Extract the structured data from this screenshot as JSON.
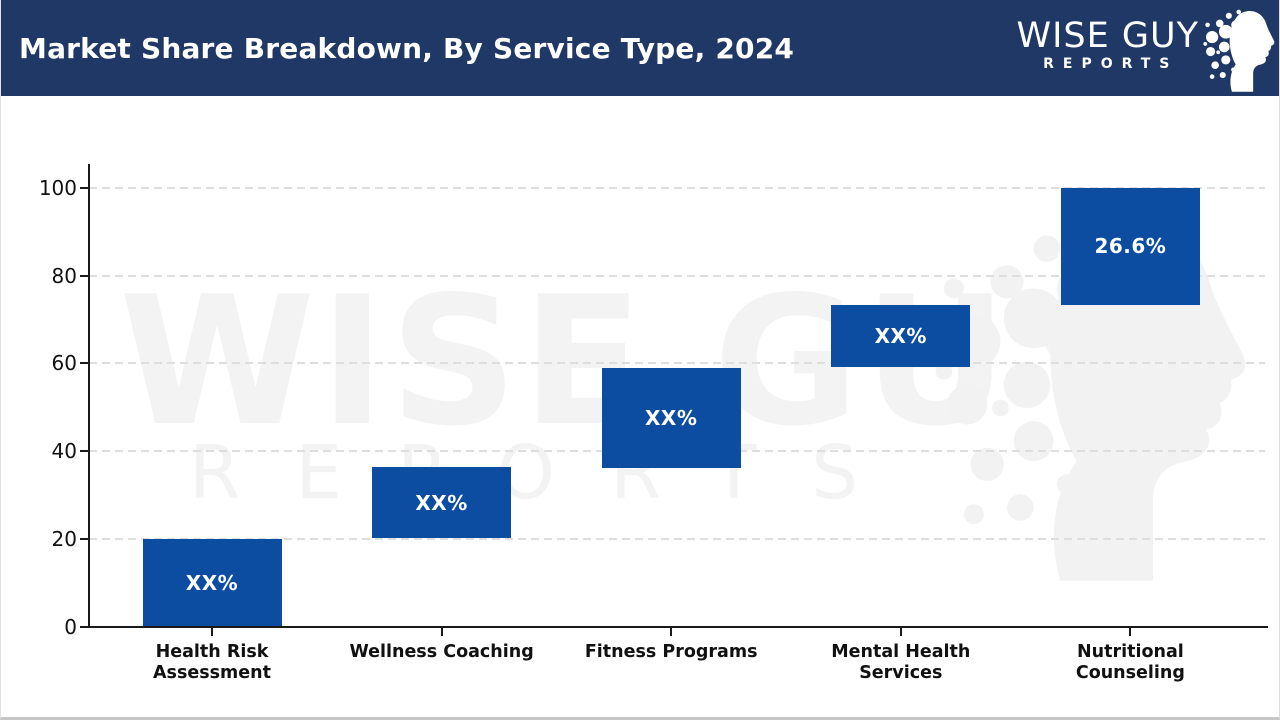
{
  "header": {
    "background": "#203865",
    "title": "Market Share Breakdown, By Service Type, 2024",
    "logo": {
      "name": "WISE GUY",
      "tagline": "REPORTS"
    }
  },
  "watermark": {
    "line1": "WISE GUY",
    "line2": "REPORTS"
  },
  "chart_data": {
    "type": "bar",
    "subtype": "waterfall",
    "title": "Market Share Breakdown, By Service Type, 2024",
    "unit": "%",
    "ylim": [
      0,
      105
    ],
    "yticks": [
      0,
      20,
      40,
      60,
      80,
      100
    ],
    "grid": "horizontal-dashed",
    "legend": "none",
    "bar_color": "#0c4da2",
    "bar_label_color": "#ffffff",
    "segments": [
      {
        "category_lines": [
          "Health Risk",
          "Assessment"
        ],
        "start": 0,
        "end": 20,
        "value_label": "XX%"
      },
      {
        "category_lines": [
          "Wellness Coaching"
        ],
        "start": 20.2,
        "end": 36.4,
        "value_label": "XX%"
      },
      {
        "category_lines": [
          "Fitness Programs"
        ],
        "start": 36.3,
        "end": 59,
        "value_label": "XX%"
      },
      {
        "category_lines": [
          "Mental Health",
          "Services"
        ],
        "start": 59.3,
        "end": 73.4,
        "value_label": "XX%"
      },
      {
        "category_lines": [
          "Nutritional",
          "Counseling"
        ],
        "start": 73.4,
        "end": 100,
        "value_label": "26.6%"
      }
    ]
  }
}
